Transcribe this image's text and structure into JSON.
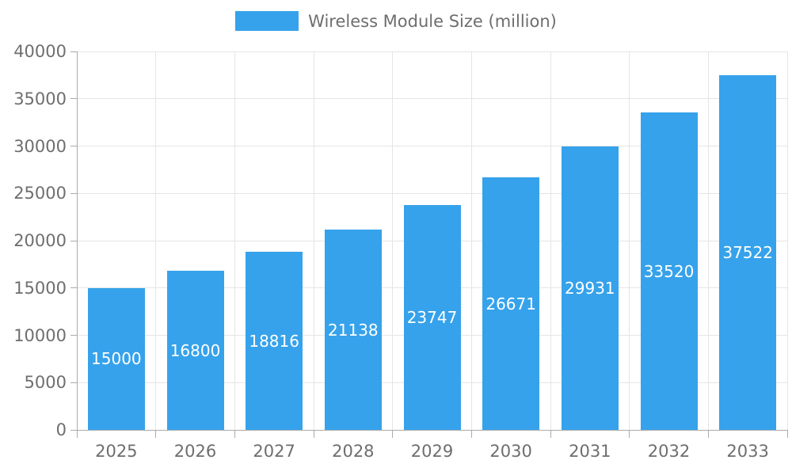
{
  "legend": {
    "label": "Wireless Module Size (million)"
  },
  "colors": {
    "bar": "#36A2EB",
    "axis_text": "#6E6E6E",
    "bar_label_text": "#FFFFFF",
    "gridline": "#E5E5E5",
    "axis_line": "#ABABAB"
  },
  "chart_data": {
    "type": "bar",
    "categories": [
      "2025",
      "2026",
      "2027",
      "2028",
      "2029",
      "2030",
      "2031",
      "2032",
      "2033"
    ],
    "values": [
      15000,
      16800,
      18816,
      21138,
      23747,
      26671,
      29931,
      33520,
      37522
    ],
    "title": "Wireless Module Size (million)",
    "xlabel": "",
    "ylabel": "",
    "ylim": [
      0,
      40000
    ],
    "ytick_step": 5000,
    "legend_position": "top",
    "grid": true,
    "bar_labels_visible": true,
    "bar_label_position": "center-of-bar"
  }
}
